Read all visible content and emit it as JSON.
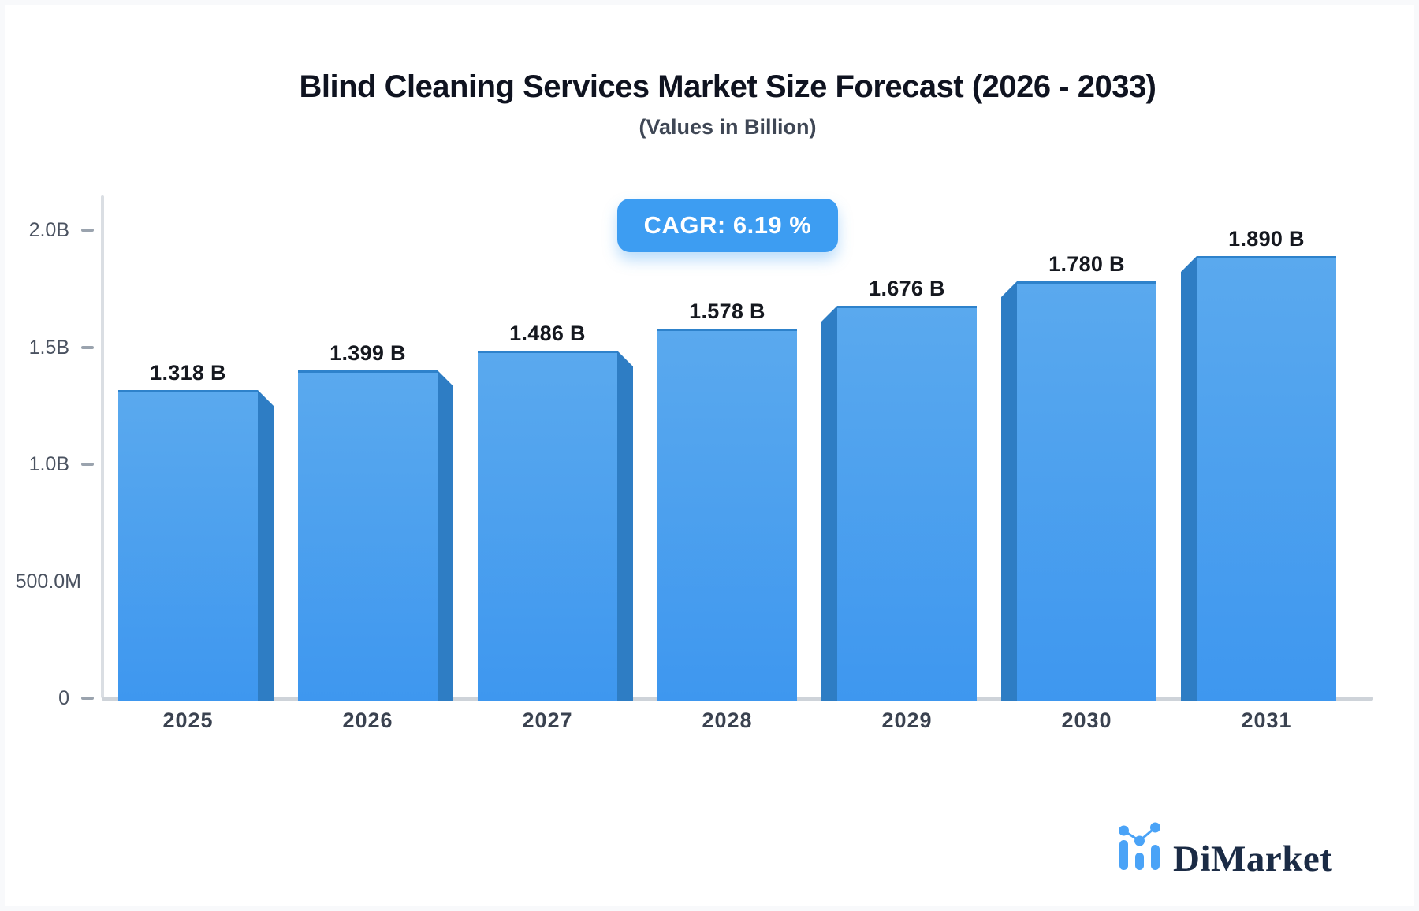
{
  "header": {
    "title": "Blind Cleaning Services Market Size Forecast (2026 - 2033)",
    "subtitle": "(Values in Billion)",
    "cagr_badge": "CAGR: 6.19 %"
  },
  "chart_data": {
    "type": "bar",
    "title": "Blind Cleaning Services Market Size Forecast (2026 - 2033)",
    "subtitle": "(Values in Billion)",
    "cagr_percent": 6.19,
    "categories": [
      "2025",
      "2026",
      "2027",
      "2028",
      "2029",
      "2030",
      "2031"
    ],
    "values": [
      1.318,
      1.399,
      1.486,
      1.578,
      1.676,
      1.78,
      1.89
    ],
    "value_labels": [
      "1.318 B",
      "1.399 B",
      "1.486 B",
      "1.578 B",
      "1.676 B",
      "1.780 B",
      "1.890 B"
    ],
    "xlabel": "",
    "ylabel": "",
    "ylim": [
      0,
      2.0
    ],
    "yticks": [
      {
        "label": "2.0B",
        "value": 2.0,
        "dash": true
      },
      {
        "label": "1.5B",
        "value": 1.5,
        "dash": true
      },
      {
        "label": "1.0B",
        "value": 1.0,
        "dash": true
      },
      {
        "label": "500.0M",
        "value": 0.5,
        "dash": false
      },
      {
        "label": "0",
        "value": 0.0,
        "dash": true
      }
    ],
    "grid": "off",
    "legend": "none"
  },
  "footer": {
    "logo_text": "DiMarket"
  },
  "colors": {
    "accent_blue": "#3d9df2",
    "bar_face_top": "#5aa9ee",
    "bar_face_bottom": "#3e97ef",
    "bar_side": "#2e7dc4",
    "bar_top_edge": "#2e82cb",
    "axis_line": "#ced3d9",
    "y_axis_line": "#dadee3",
    "tick_dash": "#9aa3ae",
    "label_dark": "#15181f",
    "label_slate": "#3a4250",
    "logo_navy": "#1b2b45",
    "logo_blue": "#4aa3f7"
  }
}
